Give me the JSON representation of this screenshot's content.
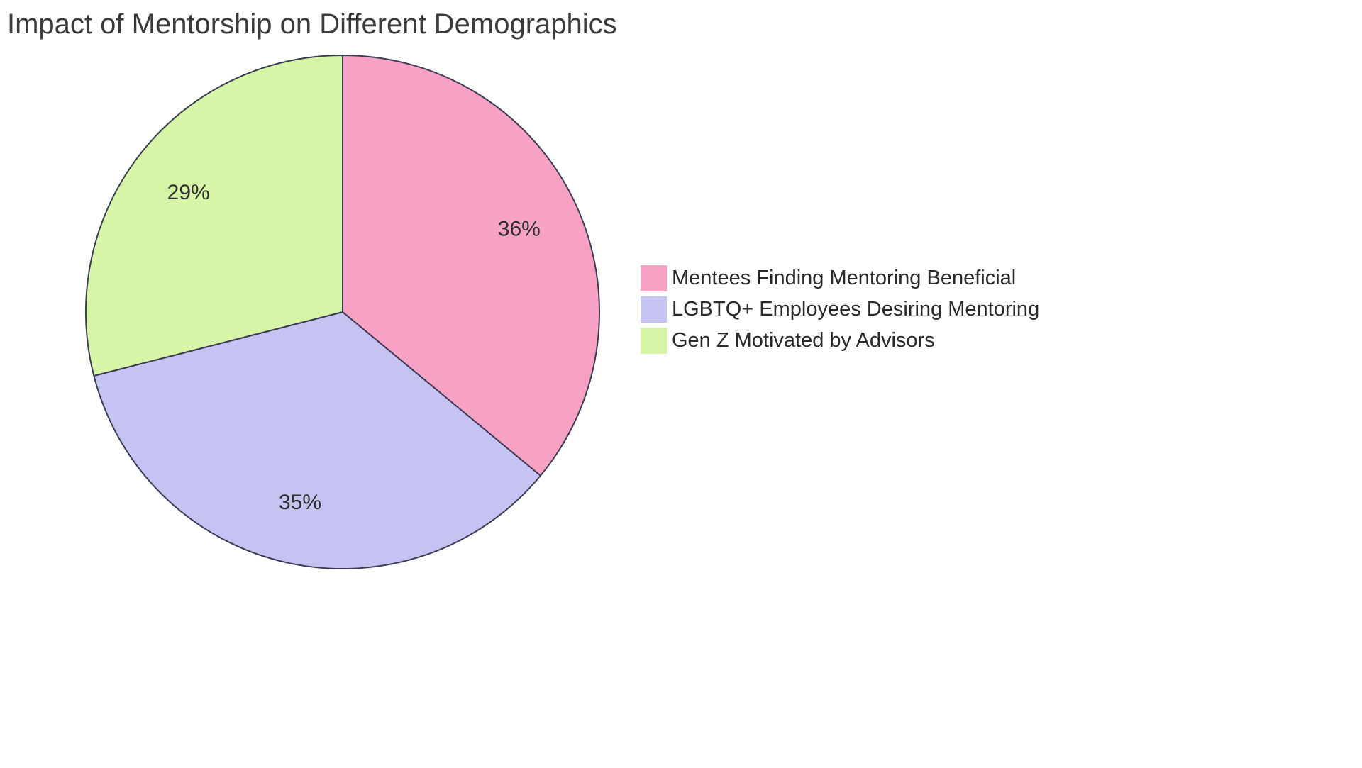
{
  "chart_data": {
    "type": "pie",
    "title": "Impact of Mentorship on Different Demographics",
    "labels": [
      "Mentees Finding Mentoring Beneficial",
      "LGBTQ+ Employees Desiring Mentoring",
      "Gen Z Motivated by Advisors"
    ],
    "values": [
      36,
      35,
      29
    ],
    "unit": "%",
    "data_labels": [
      "36%",
      "35%",
      "29%"
    ],
    "colors": [
      "#F7A1C4",
      "#C5C3F2",
      "#D7F5A6"
    ],
    "stroke_color": "#3C3C54",
    "start_angle_deg": -90,
    "direction": "clockwise",
    "legend_position": "right",
    "grid": false
  },
  "legend": {
    "items": [
      {
        "label": "Mentees Finding Mentoring Beneficial",
        "color": "#F7A1C4"
      },
      {
        "label": "LGBTQ+ Employees Desiring Mentoring",
        "color": "#C5C3F2"
      },
      {
        "label": "Gen Z Motivated by Advisors",
        "color": "#D7F5A6"
      }
    ]
  },
  "colors": {
    "background": "#ffffff",
    "title_text": "#3b3b3b",
    "label_text": "#2e2e2e"
  }
}
